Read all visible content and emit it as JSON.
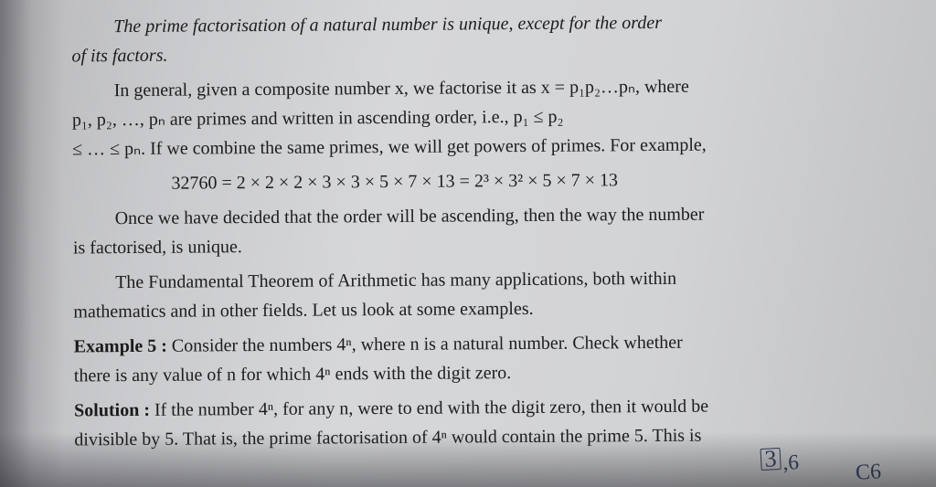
{
  "heading": {
    "line1_pre": "The prime factorisation of a natural number is unique, except for the order",
    "line2": "of its factors."
  },
  "p_general": {
    "l1": "In general, given a composite number x, we factorise it as x = p₁p₂…pₙ, where",
    "l2": "p₁, p₂, …, pₙ are primes and written in ascending order, i.e., p₁ ≤ p₂",
    "l3": "≤ … ≤ pₙ. If we combine the same primes, we will get powers of primes. For example,"
  },
  "equation": "32760 = 2 × 2 × 2 × 3 × 3 × 5 × 7 × 13 = 2³ × 3² × 5 × 7 × 13",
  "p_once": {
    "l1": "Once we have decided that the order will be ascending, then the way the number",
    "l2": "is factorised, is unique."
  },
  "p_fta": {
    "l1": "The Fundamental Theorem of Arithmetic has many applications, both within",
    "l2": "mathematics and in other fields. Let us look at some examples."
  },
  "example": {
    "label": "Example 5 :",
    "l1": " Consider the numbers 4ⁿ, where n is a natural number. Check whether",
    "l2": "there is any value of n for which 4ⁿ ends with the digit zero."
  },
  "solution": {
    "label": "Solution :",
    "l1": " If the number 4ⁿ, for any n, were to end with the digit zero, then it would be",
    "l2": "divisible by 5. That is, the prime factorisation of 4ⁿ would contain the prime 5. This is"
  },
  "handwriting": {
    "note1_box": "3",
    "note1_rest": ",6",
    "note2": "C6"
  }
}
